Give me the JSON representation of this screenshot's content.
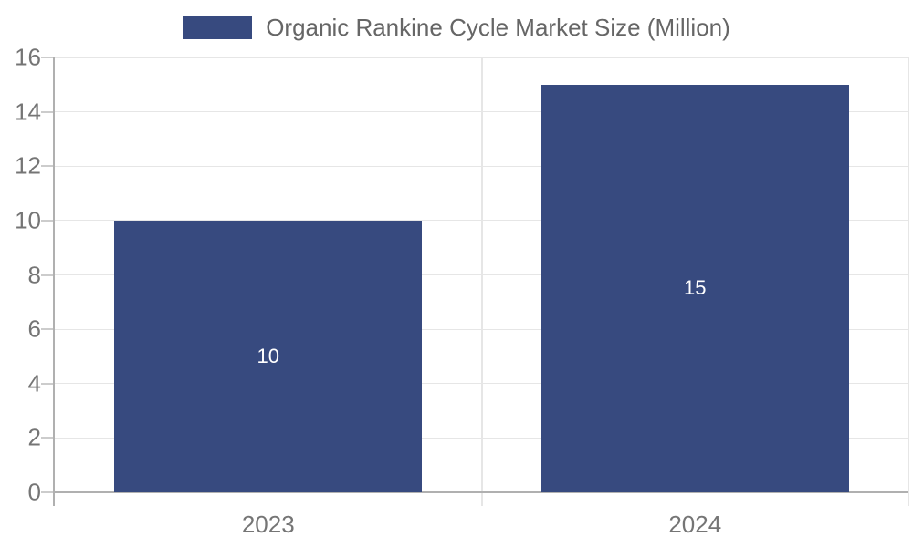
{
  "legend": {
    "label": "Organic Rankine Cycle Market Size (Million)"
  },
  "colors": {
    "bar": "#374a7f",
    "legend_text": "#666666",
    "axis_text": "#757575",
    "grid": "#e6e6e6",
    "tick": "#cccccc",
    "axis_line": "#b0b0b0",
    "data_label": "#ffffff",
    "background": "#ffffff"
  },
  "chart_data": {
    "type": "bar",
    "title": "",
    "categories": [
      "2023",
      "2024"
    ],
    "series": [
      {
        "name": "Organic Rankine Cycle Market Size (Million)",
        "values": [
          10,
          15
        ]
      }
    ],
    "data_labels": [
      10,
      15
    ],
    "xlabel": "",
    "ylabel": "",
    "ylim": [
      0,
      16
    ],
    "ytick_step": 2,
    "ytick_labels": [
      "0",
      "2",
      "4",
      "6",
      "8",
      "10",
      "12",
      "14",
      "16"
    ],
    "grid": true,
    "legend_position": "top-center"
  }
}
